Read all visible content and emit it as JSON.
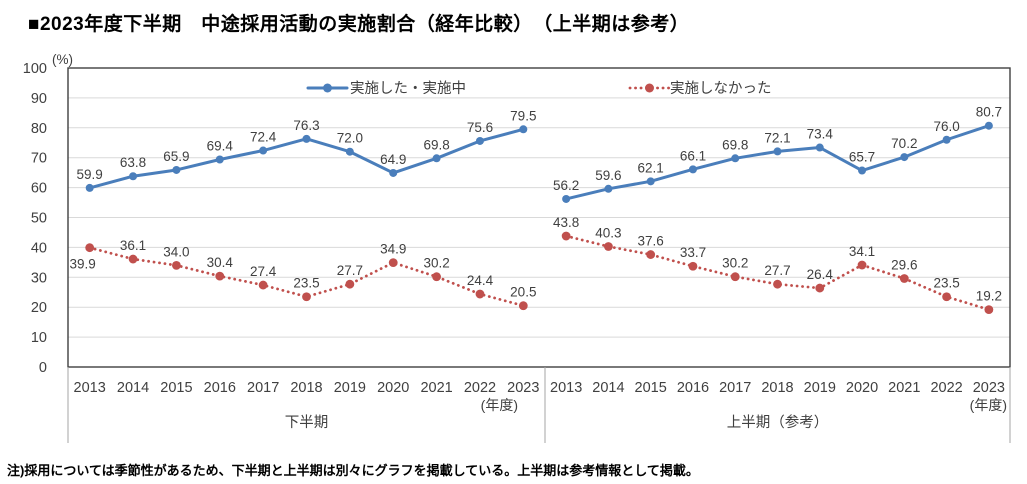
{
  "title": "■2023年度下半期　中途採用活動の実施割合（経年比較）　（上半期は参考）",
  "note": "注)採用については季節性があるため、下半期と上半期は別々にグラフを掲載している。上半期は参考情報として掲載。",
  "chart_data": {
    "type": "line",
    "unit_label": "(%)",
    "ylim": [
      0,
      100
    ],
    "ytick_step": 10,
    "y_ticks": [
      0,
      10,
      20,
      30,
      40,
      50,
      60,
      70,
      80,
      90,
      100
    ],
    "grid": true,
    "legend_position": "top-inside",
    "colors": {
      "series_blue": "#4A7EBB",
      "series_red": "#C0504D",
      "text": "#404040",
      "grid": "#D9D9D9",
      "border": "#404040",
      "separator": "#A6A6A6"
    },
    "series_meta": [
      {
        "name": "実施した・実施中",
        "color": "#4A7EBB",
        "line_style": "solid"
      },
      {
        "name": "実施しなかった",
        "color": "#C0504D",
        "line_style": "dotted"
      }
    ],
    "panels": [
      {
        "label": "下半期",
        "axis_note": "(年度)",
        "categories": [
          "2013",
          "2014",
          "2015",
          "2016",
          "2017",
          "2018",
          "2019",
          "2020",
          "2021",
          "2022",
          "2023"
        ],
        "series": [
          {
            "name": "実施した・実施中",
            "values": [
              59.9,
              63.8,
              65.9,
              69.4,
              72.4,
              76.3,
              72.0,
              64.9,
              69.8,
              75.6,
              79.5
            ]
          },
          {
            "name": "実施しなかった",
            "values": [
              39.9,
              36.1,
              34.0,
              30.4,
              27.4,
              23.5,
              27.7,
              34.9,
              30.2,
              24.4,
              20.5
            ]
          }
        ]
      },
      {
        "label": "上半期（参考）",
        "axis_note": "(年度)",
        "categories": [
          "2013",
          "2014",
          "2015",
          "2016",
          "2017",
          "2018",
          "2019",
          "2020",
          "2021",
          "2022",
          "2023"
        ],
        "series": [
          {
            "name": "実施した・実施中",
            "values": [
              56.2,
              59.6,
              62.1,
              66.1,
              69.8,
              72.1,
              73.4,
              65.7,
              70.2,
              76.0,
              80.7
            ]
          },
          {
            "name": "実施しなかった",
            "values": [
              43.8,
              40.3,
              37.6,
              33.7,
              30.2,
              27.7,
              26.4,
              34.1,
              29.6,
              23.5,
              19.2
            ]
          }
        ]
      }
    ]
  }
}
